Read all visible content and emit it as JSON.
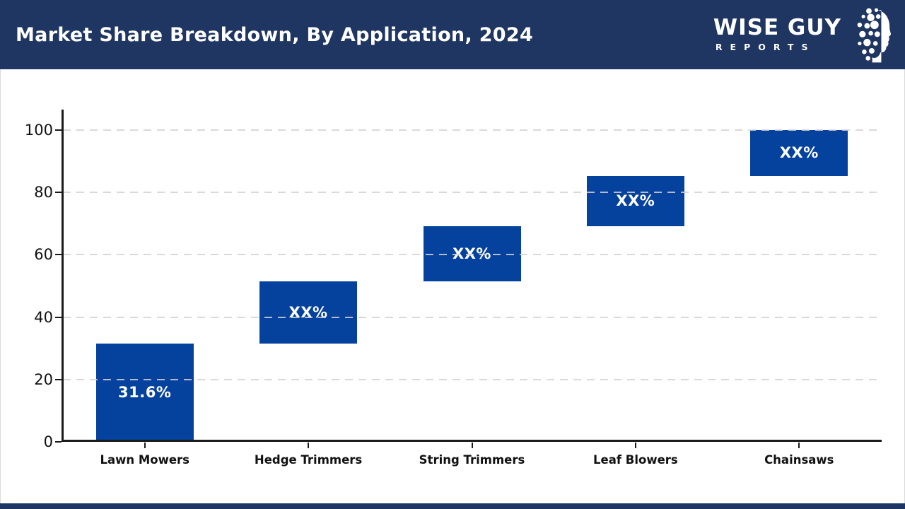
{
  "header": {
    "title": "Market Share Breakdown, By Application, 2024",
    "background": "#1f3562",
    "brand": {
      "line1": "WISE GUY",
      "line2": "REPORTS"
    }
  },
  "watermark": {
    "line1": "WISE GUY",
    "line2": "REPORTS"
  },
  "chart_data": {
    "type": "bar",
    "subtype": "waterfall",
    "title": "Market Share Breakdown, By Application, 2024",
    "categories": [
      "Lawn Mowers",
      "Hedge Trimmers",
      "String Trimmers",
      "Leaf Blowers",
      "Chainsaws"
    ],
    "segments": [
      [
        0,
        31.6
      ],
      [
        31.6,
        51.5
      ],
      [
        51.5,
        69.2
      ],
      [
        69.2,
        85.3
      ],
      [
        85.3,
        100
      ]
    ],
    "bar_labels": [
      "31.6%",
      "XX%",
      "XX%",
      "XX%",
      "XX%"
    ],
    "yticks": [
      0,
      20,
      40,
      60,
      80,
      100
    ],
    "ylim": [
      0,
      100
    ],
    "xlabel": "",
    "ylabel": "",
    "grid": "dashed-horizontal",
    "legend": "none",
    "bar_color": "#05429d",
    "gridline_color": "#d6d6d6",
    "axis_color": "#1a1a1a"
  }
}
